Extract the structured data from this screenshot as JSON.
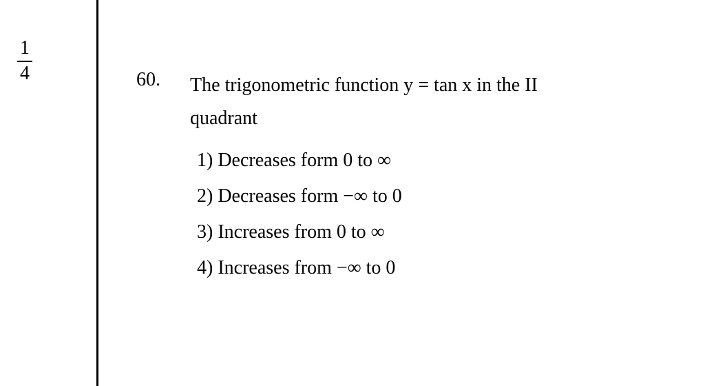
{
  "margin": {
    "fraction_numerator": "1",
    "fraction_denominator": "4"
  },
  "question": {
    "number": "60.",
    "text_line1": "The trigonometric function  y = tan x  in the II",
    "text_line2": "quadrant",
    "options": [
      "1) Decreases form  0  to  ∞",
      "2) Decreases form  −∞ to  0",
      "3) Increases from  0  to  ∞",
      "4) Increases from  −∞ to  0"
    ]
  },
  "styling": {
    "background_color": "#ffffff",
    "text_color": "#000000",
    "font_family": "Georgia, Times New Roman, serif",
    "question_fontsize": 28,
    "divider_width": 3,
    "divider_color": "#000000"
  }
}
